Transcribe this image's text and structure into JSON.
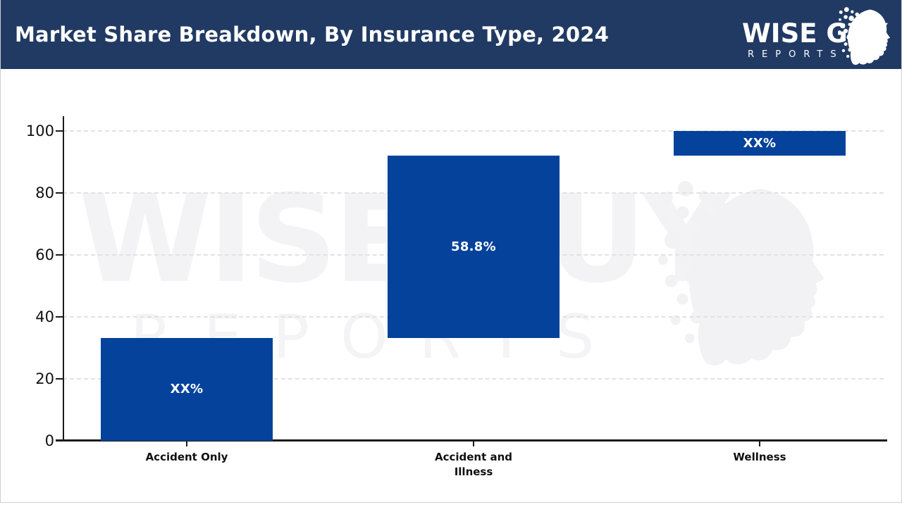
{
  "header": {
    "title": "Market Share Breakdown, By Insurance Type, 2024",
    "logo": {
      "name": "WISE GUY",
      "subtitle": "REPORTS"
    }
  },
  "watermark": {
    "name": "WISE GUY",
    "subtitle": "REPORTS"
  },
  "chart_data": {
    "type": "bar",
    "subtype": "floating-waterfall",
    "title": "Market Share Breakdown, By Insurance Type, 2024",
    "categories": [
      "Accident Only",
      "Accident and Illness",
      "Wellness"
    ],
    "bars": [
      {
        "category": "Accident Only",
        "from": 0,
        "to": 33.2,
        "label": "XX%"
      },
      {
        "category": "Accident and Illness",
        "from": 33.2,
        "to": 92,
        "label": "58.8%"
      },
      {
        "category": "Wellness",
        "from": 92,
        "to": 100,
        "label": "XX%"
      }
    ],
    "xtick_lines": [
      [
        "Accident Only"
      ],
      [
        "Accident and",
        "Illness"
      ],
      [
        "Wellness"
      ]
    ],
    "yticks": [
      0,
      20,
      40,
      60,
      80,
      100
    ],
    "ylim": [
      0,
      105
    ],
    "xlabel": "",
    "ylabel": "",
    "grid": "horizontal-dashed",
    "legend": "none",
    "bar_color": "#04429b",
    "bar_label_color": "#ffffff"
  },
  "colors": {
    "header_bg": "#213a63",
    "bar": "#04429b",
    "axis": "#1b1b1b",
    "gridline": "#e2e2e2",
    "watermark": "#f3f3f6",
    "frame_border": "#cfcfcf"
  }
}
